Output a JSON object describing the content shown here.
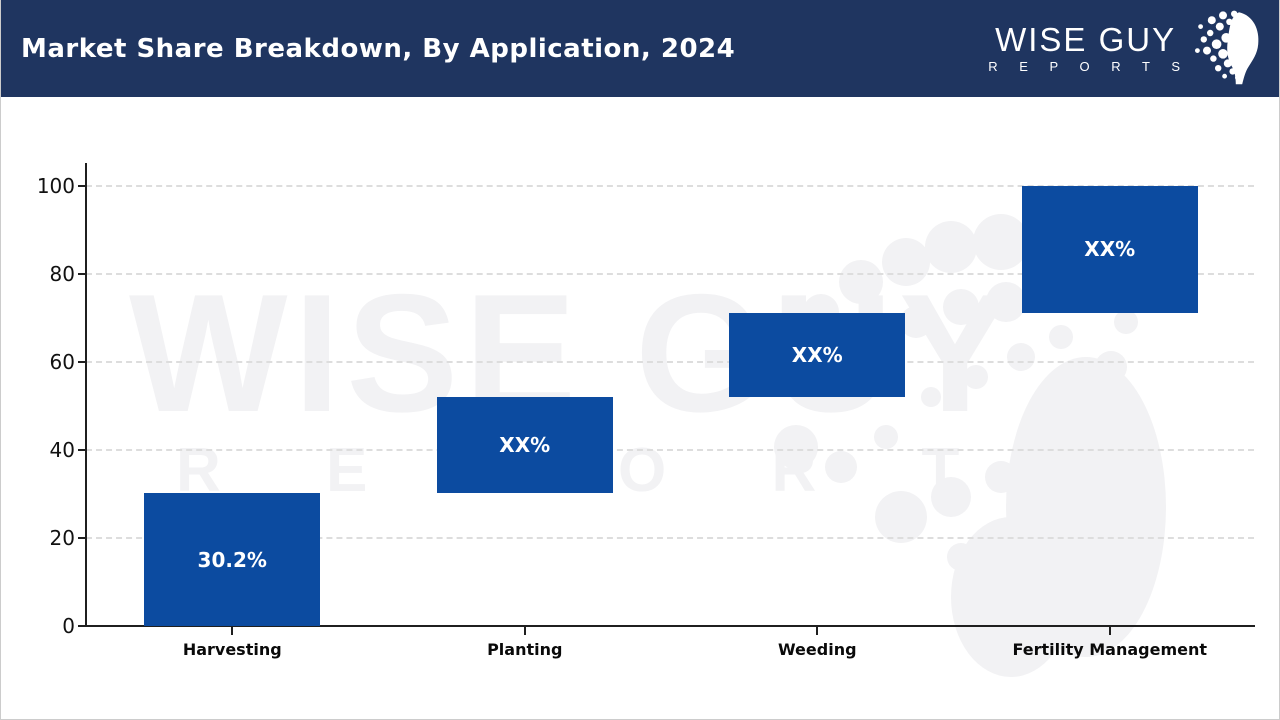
{
  "header": {
    "title": "Market Share Breakdown, By Application, 2024",
    "bg_color": "#1f3560",
    "logo": {
      "line1": "WISE GUY",
      "line2": "R E P O R T S",
      "head_icon": "dotted-face-profile"
    }
  },
  "chart_data": {
    "type": "bar",
    "subtype": "waterfall",
    "title": "Market Share Breakdown, By Application, 2024",
    "xlabel": "",
    "ylabel": "",
    "categories": [
      "Harvesting",
      "Planting",
      "Weeding",
      "Fertility Management"
    ],
    "segments": [
      {
        "category": "Harvesting",
        "start": 0,
        "end": 30.2,
        "value": 30.2,
        "label": "30.2%"
      },
      {
        "category": "Planting",
        "start": 30.2,
        "end": 52,
        "value": 21.8,
        "label": "XX%"
      },
      {
        "category": "Weeding",
        "start": 52,
        "end": 71.2,
        "value": 19.2,
        "label": "XX%"
      },
      {
        "category": "Fertility Management",
        "start": 71.2,
        "end": 100,
        "value": 28.8,
        "label": "XX%"
      }
    ],
    "yticks": [
      0,
      20,
      40,
      60,
      80,
      100
    ],
    "ylim": [
      0,
      105
    ],
    "bar_color": "#0c4ba0",
    "bar_label_color": "#ffffff",
    "grid": "horizontal dashed",
    "grid_color": "#dddddd",
    "legend": "none",
    "watermark": {
      "line1": "WISE GUY",
      "line2": "R E P O R T S"
    }
  }
}
